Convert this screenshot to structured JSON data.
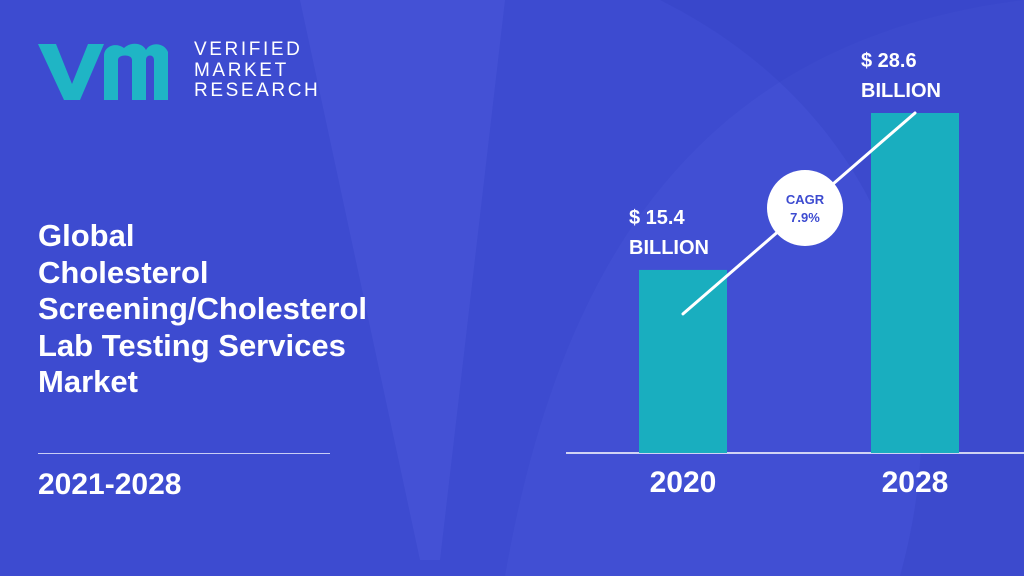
{
  "brand": {
    "name_lines": [
      "VERIFIED",
      "MARKET",
      "RESEARCH"
    ],
    "logo_icon": "vmr-logo-icon"
  },
  "title_lines": [
    "Global",
    "Cholesterol",
    "Screening/Cholesterol",
    "Lab Testing Services",
    "Market"
  ],
  "period": "2021-2028",
  "colors": {
    "background": "#3d4bd0",
    "background_shape": "#4a58d8",
    "bar": "#19aebf",
    "logo_teal": "#1fb5c5"
  },
  "chart_data": {
    "type": "bar",
    "categories": [
      "2020",
      "2028"
    ],
    "values": [
      15.4,
      28.6
    ],
    "value_labels": [
      [
        "$ 15.4",
        "BILLION"
      ],
      [
        "$ 28.6",
        "BILLION"
      ]
    ],
    "annotation": {
      "label": "CAGR",
      "value": "7.9%"
    },
    "ylim": [
      0,
      28.6
    ],
    "grid": false
  }
}
